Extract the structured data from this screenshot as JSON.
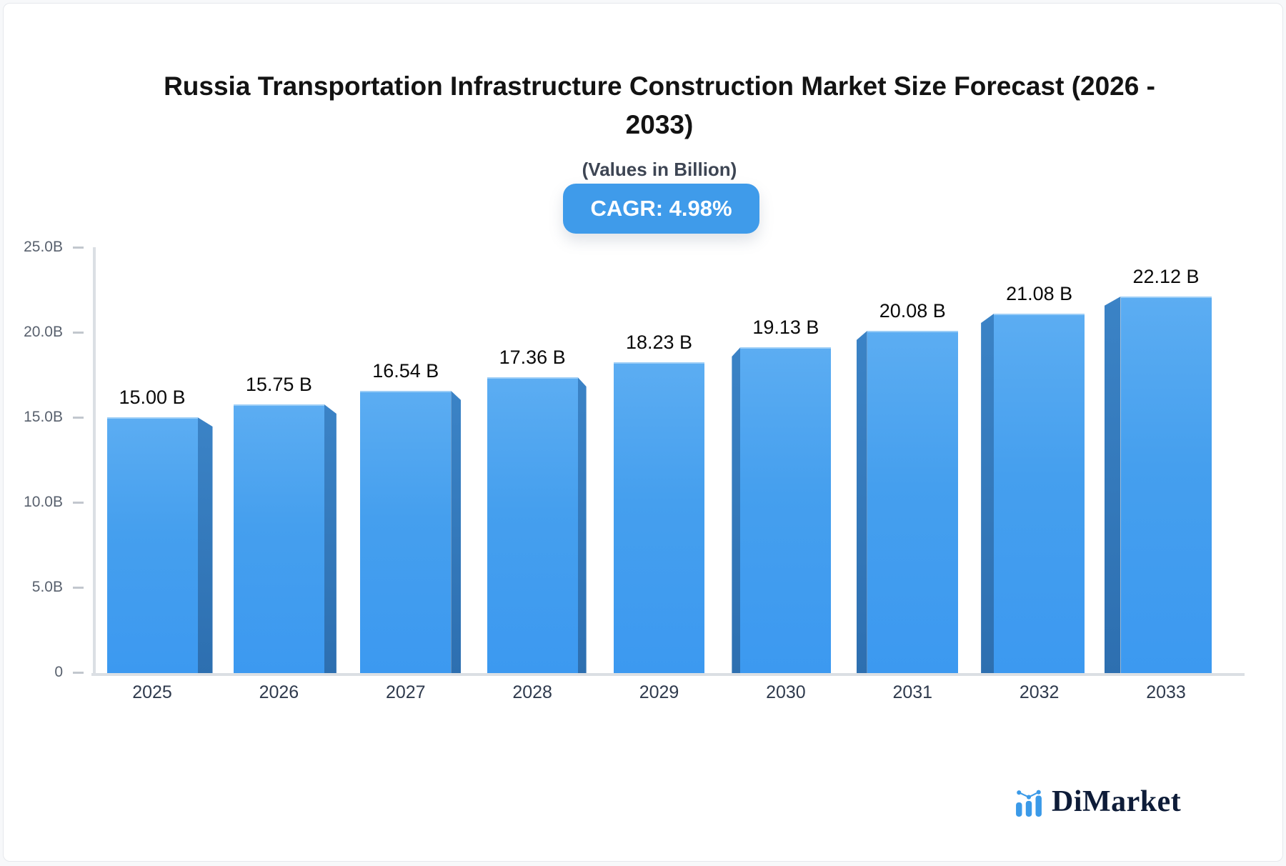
{
  "header": {
    "title_line1": "Russia Transportation Infrastructure Construction Market Size Forecast (2026 -",
    "title_line2": "2033)",
    "subtitle": "(Values in Billion)",
    "cagr_badge": "CAGR: 4.98%"
  },
  "chart_data": {
    "type": "bar",
    "bar_style": "3d",
    "title": "Russia Transportation Infrastructure Construction Market Size Forecast (2026 - 2033)",
    "subtitle": "(Values in Billion)",
    "cagr_percent": 4.98,
    "categories": [
      "2025",
      "2026",
      "2027",
      "2028",
      "2029",
      "2030",
      "2031",
      "2032",
      "2033"
    ],
    "values": [
      15.0,
      15.75,
      16.54,
      17.36,
      18.23,
      19.13,
      20.08,
      21.08,
      22.12
    ],
    "value_labels": [
      "15.00 B",
      "15.75 B",
      "16.54 B",
      "17.36 B",
      "18.23 B",
      "19.13 B",
      "20.08 B",
      "21.08 B",
      "22.12 B"
    ],
    "y_axis": {
      "min": 0,
      "max": 25,
      "ticks": [
        {
          "value": 25,
          "label": "25.0B"
        },
        {
          "value": 20,
          "label": "20.0B"
        },
        {
          "value": 15,
          "label": "15.0B"
        },
        {
          "value": 10,
          "label": "10.0B"
        },
        {
          "value": 5,
          "label": "5.0B"
        },
        {
          "value": 0,
          "label": "0"
        }
      ]
    },
    "grid": false,
    "legend": false,
    "colors": {
      "bar_face_top": "#5cadf2",
      "bar_face_bottom": "#3c99f0",
      "bar_side": "#2e72b2",
      "badge_bg": "#3f9bea",
      "badge_text": "#ffffff",
      "axis_line": "#dbdfe4",
      "tick_dash": "#c2c7ce",
      "tick_label": "#59616e",
      "x_label": "#2f3a4d",
      "value_label": "#0a0a0a"
    }
  },
  "branding": {
    "logo_text": "DiMarket",
    "logo_icon": "mini-bar-chart-trend-icon",
    "logo_icon_color": "#3b9ae8",
    "logo_text_color": "#0e1c38"
  }
}
